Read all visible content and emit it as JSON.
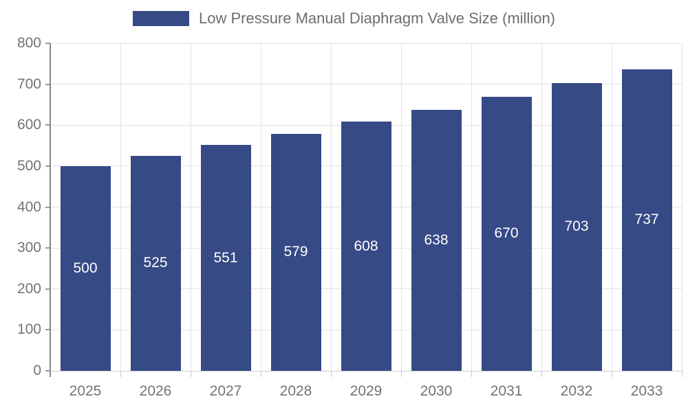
{
  "legend": {
    "label": "Low Pressure Manual Diaphragm Valve Size (million)"
  },
  "colors": {
    "bar": "#364a85",
    "grid": "#e3e3e3",
    "axis": "#868686",
    "tick_label": "#737373",
    "value_label": "#ffffff"
  },
  "chart_data": {
    "type": "bar",
    "title": "",
    "xlabel": "",
    "ylabel": "",
    "categories": [
      "2025",
      "2026",
      "2027",
      "2028",
      "2029",
      "2030",
      "2031",
      "2032",
      "2033"
    ],
    "series": [
      {
        "name": "Low Pressure Manual Diaphragm Valve Size (million)",
        "values": [
          500,
          525,
          551,
          579,
          608,
          638,
          670,
          703,
          737
        ],
        "color": "#364a85"
      }
    ],
    "value_labels_shown": true,
    "value_label_position": "inside-center",
    "ylim": [
      0,
      800
    ],
    "yticks": [
      0,
      100,
      200,
      300,
      400,
      500,
      600,
      700,
      800
    ],
    "grid": true,
    "legend_position": "top-center"
  }
}
